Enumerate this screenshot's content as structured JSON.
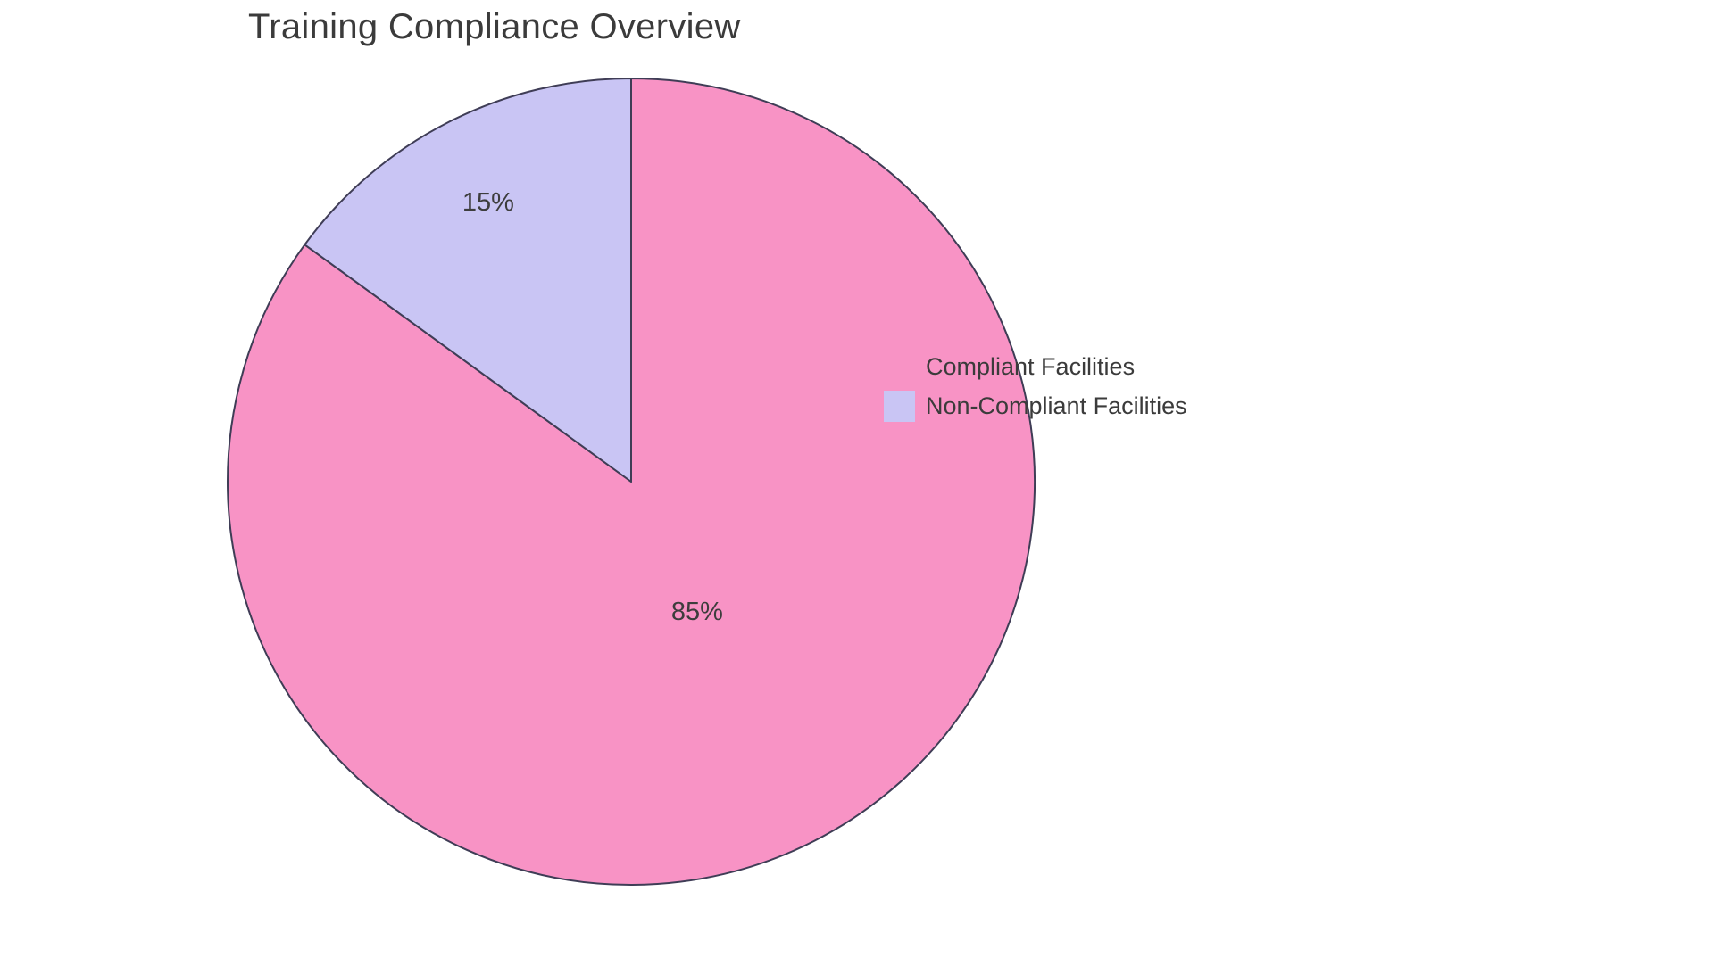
{
  "title": "Training Compliance Overview",
  "colors": {
    "background": "#ffffff",
    "stroke": "#3F3D56",
    "text": "#3b3b3b",
    "compliant": "#F893C5",
    "non_compliant": "#C9C5F4"
  },
  "chart_data": {
    "type": "pie",
    "title": "Training Compliance Overview",
    "legend_position": "right",
    "start_angle_deg": 0,
    "direction": "clockwise",
    "slices": [
      {
        "label": "Compliant Facilities",
        "value": 85,
        "percent_label": "85%",
        "color": "#F893C5"
      },
      {
        "label": "Non-Compliant Facilities",
        "value": 15,
        "percent_label": "15%",
        "color": "#C9C5F4"
      }
    ]
  }
}
